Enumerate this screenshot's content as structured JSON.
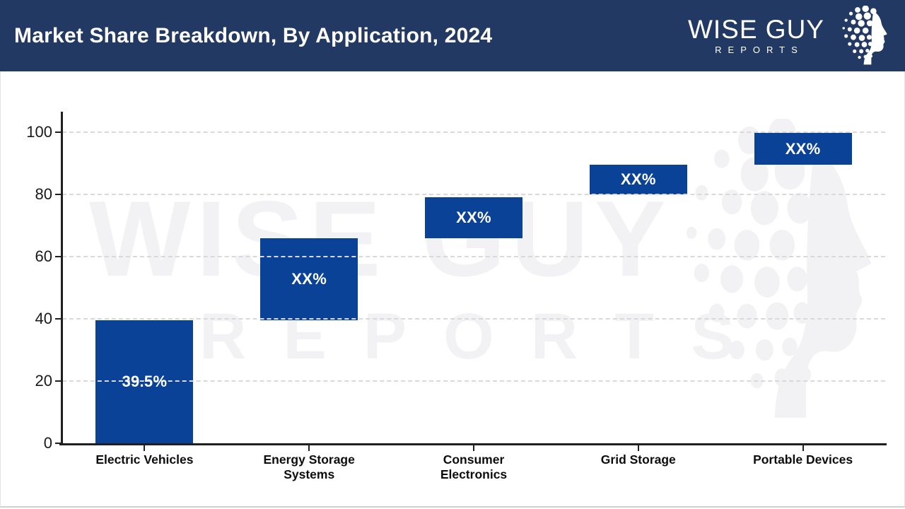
{
  "header": {
    "title": "Market Share Breakdown, By Application, 2024"
  },
  "logo": {
    "wordmark": "WISE GUY",
    "subtext": "REPORTS"
  },
  "watermark": {
    "wordmark": "WISE GUY",
    "subtext": "REPORTS"
  },
  "chart_data": {
    "type": "bar",
    "subtype": "waterfall",
    "title": "Market Share Breakdown, By Application, 2024",
    "categories": [
      "Electric Vehicles",
      "Energy Storage Systems",
      "Consumer Electronics",
      "Grid Storage",
      "Portable Devices"
    ],
    "bars": [
      {
        "category": "Electric Vehicles",
        "display": "Electric Vehicles",
        "start": 0,
        "end": 39.5,
        "label": "39.5%"
      },
      {
        "category": "Energy Storage Systems",
        "display": "Energy Storage\nSystems",
        "start": 39.5,
        "end": 66,
        "label": "XX%"
      },
      {
        "category": "Consumer Electronics",
        "display": "Consumer\nElectronics",
        "start": 66,
        "end": 79,
        "label": "XX%"
      },
      {
        "category": "Grid Storage",
        "display": "Grid Storage",
        "start": 80,
        "end": 89.5,
        "label": "XX%"
      },
      {
        "category": "Portable Devices",
        "display": "Portable Devices",
        "start": 89.5,
        "end": 99.7,
        "label": "XX%"
      }
    ],
    "yticks": [
      0,
      20,
      40,
      60,
      80,
      100
    ],
    "ylim": [
      0,
      105
    ],
    "xlabel": "",
    "ylabel": "",
    "grid": "horizontal-dashed",
    "legend": "none",
    "bar_color": "#0a4298",
    "bar_label_color": "#ffffff"
  },
  "colors": {
    "header_bg": "#223a63",
    "bar": "#0a4298",
    "grid": "#d9d9d9",
    "axis": "#1f1f1f",
    "watermark": "#f2f2f4",
    "background": "#ffffff"
  }
}
